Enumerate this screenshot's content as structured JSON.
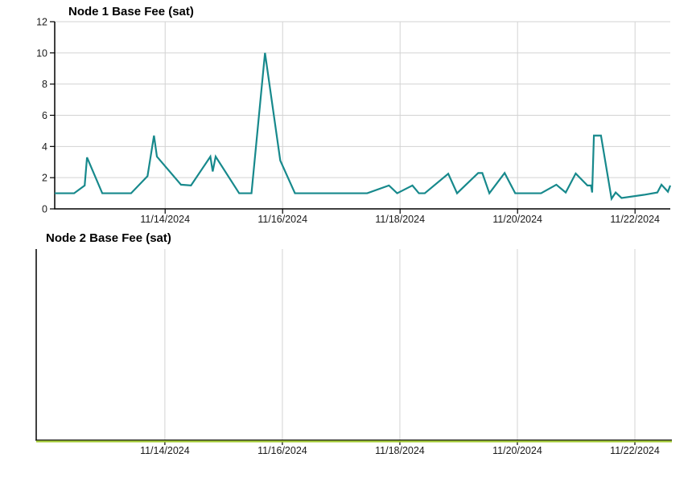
{
  "chart_data": [
    {
      "type": "line",
      "title": "Node 1 Base Fee (sat)",
      "xlabel": "",
      "ylabel": "",
      "series_name": "Node 1 Base Fee",
      "line_color": "#17898c",
      "grid_color": "#d3d3d3",
      "axis_color": "#000000",
      "grid": "on",
      "legend": "none",
      "x_unit": "date (November 2024, fractional day)",
      "x_range_days": [
        12.12,
        22.6
      ],
      "x_tick_days": [
        14,
        16,
        18,
        20,
        22
      ],
      "x_tick_labels": [
        "11/14/2024",
        "11/16/2024",
        "11/18/2024",
        "11/20/2024",
        "11/22/2024"
      ],
      "y_ticks": [
        0,
        2,
        4,
        6,
        8,
        10,
        12
      ],
      "ylim": [
        0,
        12
      ],
      "points": [
        [
          12.12,
          1.0
        ],
        [
          12.45,
          1.0
        ],
        [
          12.63,
          1.5
        ],
        [
          12.67,
          3.3
        ],
        [
          12.93,
          1.0
        ],
        [
          13.42,
          1.0
        ],
        [
          13.7,
          2.1
        ],
        [
          13.81,
          4.7
        ],
        [
          13.86,
          3.35
        ],
        [
          14.27,
          1.55
        ],
        [
          14.44,
          1.5
        ],
        [
          14.77,
          3.35
        ],
        [
          14.81,
          2.4
        ],
        [
          14.86,
          3.35
        ],
        [
          15.26,
          1.0
        ],
        [
          15.47,
          1.0
        ],
        [
          15.7,
          10.0
        ],
        [
          15.96,
          3.1
        ],
        [
          16.21,
          1.0
        ],
        [
          17.44,
          1.0
        ],
        [
          17.81,
          1.5
        ],
        [
          17.95,
          1.0
        ],
        [
          18.21,
          1.5
        ],
        [
          18.32,
          1.0
        ],
        [
          18.42,
          1.0
        ],
        [
          18.82,
          2.25
        ],
        [
          18.97,
          1.0
        ],
        [
          19.33,
          2.3
        ],
        [
          19.4,
          2.3
        ],
        [
          19.52,
          1.0
        ],
        [
          19.78,
          2.3
        ],
        [
          19.96,
          1.0
        ],
        [
          20.4,
          1.0
        ],
        [
          20.66,
          1.55
        ],
        [
          20.82,
          1.05
        ],
        [
          20.99,
          2.27
        ],
        [
          21.19,
          1.5
        ],
        [
          21.25,
          1.5
        ],
        [
          21.27,
          1.05
        ],
        [
          21.3,
          4.7
        ],
        [
          21.42,
          4.7
        ],
        [
          21.6,
          0.65
        ],
        [
          21.67,
          1.05
        ],
        [
          21.77,
          0.7
        ],
        [
          22.15,
          0.9
        ],
        [
          22.38,
          1.05
        ],
        [
          22.45,
          1.55
        ],
        [
          22.56,
          1.1
        ],
        [
          22.6,
          1.5
        ]
      ]
    },
    {
      "type": "line",
      "title": "Node 2 Base Fee (sat)",
      "xlabel": "",
      "ylabel": "",
      "series_name": "Node 2 Base Fee",
      "line_color": "#a6ce38",
      "grid_color": "#d3d3d3",
      "axis_color": "#000000",
      "grid": "vertical-only",
      "legend": "none",
      "x_unit": "date (November 2024, fractional day)",
      "x_range_days": [
        11.81,
        22.63
      ],
      "x_tick_days": [
        14,
        16,
        18,
        20,
        22
      ],
      "x_tick_labels": [
        "11/14/2024",
        "11/16/2024",
        "11/18/2024",
        "11/20/2024",
        "11/22/2024"
      ],
      "y_ticks": [],
      "ylim": [
        0,
        1
      ],
      "points": [
        [
          11.81,
          0.0
        ],
        [
          22.63,
          0.0
        ]
      ]
    }
  ]
}
